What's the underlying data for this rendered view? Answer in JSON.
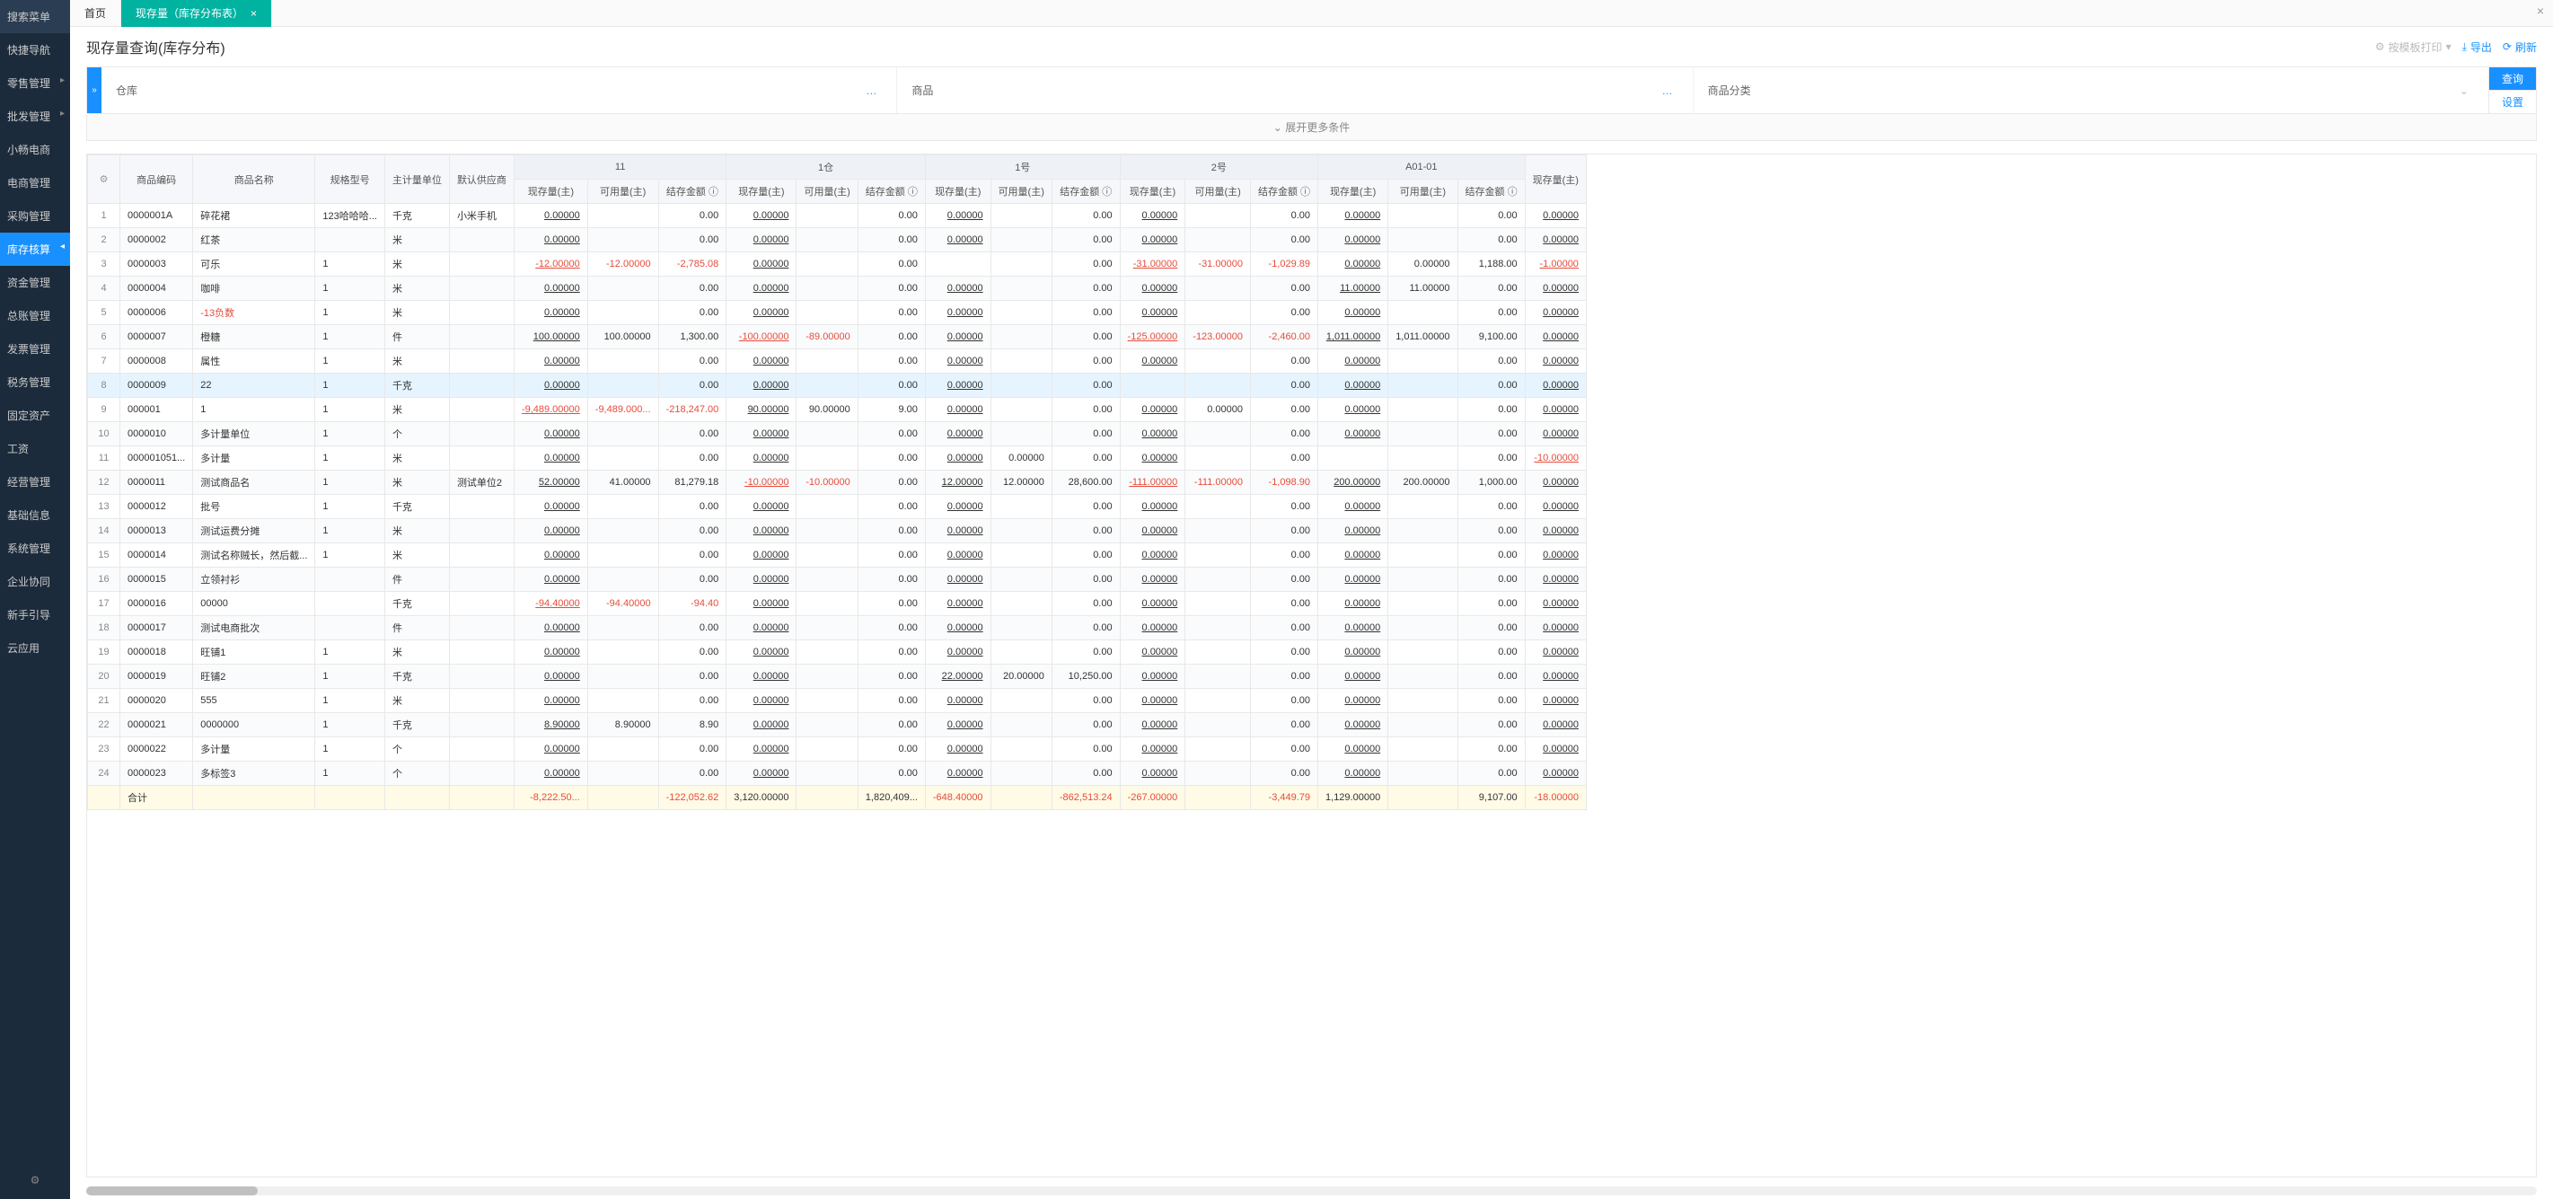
{
  "sidebar": {
    "items": [
      {
        "label": "搜索菜单",
        "sub": false
      },
      {
        "label": "快捷导航",
        "sub": false
      },
      {
        "label": "零售管理",
        "sub": true
      },
      {
        "label": "批发管理",
        "sub": true
      },
      {
        "label": "小畅电商",
        "sub": false
      },
      {
        "label": "电商管理",
        "sub": false
      },
      {
        "label": "采购管理",
        "sub": false
      },
      {
        "label": "库存核算",
        "sub": true,
        "active": true
      },
      {
        "label": "资金管理",
        "sub": false
      },
      {
        "label": "总账管理",
        "sub": false
      },
      {
        "label": "发票管理",
        "sub": false
      },
      {
        "label": "税务管理",
        "sub": false
      },
      {
        "label": "固定资产",
        "sub": false
      },
      {
        "label": "工资",
        "sub": false
      },
      {
        "label": "经营管理",
        "sub": false
      },
      {
        "label": "基础信息",
        "sub": false
      },
      {
        "label": "系统管理",
        "sub": false
      },
      {
        "label": "企业协同",
        "sub": false
      },
      {
        "label": "新手引导",
        "sub": false
      },
      {
        "label": "云应用",
        "sub": false
      }
    ],
    "footer_icon": "⚙"
  },
  "tabs": [
    {
      "label": "首页",
      "closable": false
    },
    {
      "label": "现存量（库存分布表）",
      "closable": true,
      "active": true
    }
  ],
  "page": {
    "title": "现存量查询(库存分布)",
    "actions": {
      "print": "按模板打印",
      "export": "导出",
      "refresh": "刷新"
    }
  },
  "filter": {
    "collapse_glyph": "»",
    "fields": [
      {
        "label": "仓库",
        "more": "…"
      },
      {
        "label": "商品",
        "more": "…"
      },
      {
        "label": "商品分类",
        "chevron": "⌄"
      }
    ],
    "query_btn": "查询",
    "settings_btn": "设置",
    "expand_label": "展开更多条件"
  },
  "table": {
    "fixed_cols": [
      "商品编码",
      "商品名称",
      "规格型号",
      "主计量单位",
      "默认供应商"
    ],
    "warehouses": [
      "11",
      "1仓",
      "1号",
      "2号",
      "A01-01",
      ""
    ],
    "wh_sub_cols": [
      "现存量(主)",
      "可用量(主)",
      "结存金额 ⓘ"
    ],
    "last_extra_col": "现存量(主)",
    "rows": [
      {
        "i": 1,
        "code": "0000001A",
        "name": "碎花裙",
        "spec": "123哈哈哈...",
        "unit": "千克",
        "vendor": "小米手机",
        "wh": [
          [
            "0.00000",
            "",
            "0.00"
          ],
          [
            "0.00000",
            "",
            "0.00"
          ],
          [
            "0.00000",
            "",
            "0.00"
          ],
          [
            "0.00000",
            "",
            "0.00"
          ],
          [
            "0.00000",
            "",
            "0.00"
          ]
        ],
        "ext": "0.00000"
      },
      {
        "i": 2,
        "code": "0000002",
        "name": "红茶",
        "spec": "",
        "unit": "米",
        "vendor": "",
        "wh": [
          [
            "0.00000",
            "",
            "0.00"
          ],
          [
            "0.00000",
            "",
            "0.00"
          ],
          [
            "0.00000",
            "",
            "0.00"
          ],
          [
            "0.00000",
            "",
            "0.00"
          ],
          [
            "0.00000",
            "",
            "0.00"
          ]
        ],
        "ext": "0.00000"
      },
      {
        "i": 3,
        "code": "0000003",
        "name": "可乐",
        "spec": "1",
        "unit": "米",
        "vendor": "",
        "wh": [
          [
            "-12.00000",
            "-12.00000",
            "-2,785.08"
          ],
          [
            "0.00000",
            "",
            "0.00"
          ],
          [
            "",
            "",
            "0.00"
          ],
          [
            "-31.00000",
            "-31.00000",
            "-1,029.89"
          ],
          [
            "0.00000",
            "0.00000",
            "1,188.00"
          ]
        ],
        "ext": "-1.00000"
      },
      {
        "i": 4,
        "code": "0000004",
        "name": "咖啡",
        "spec": "1",
        "unit": "米",
        "vendor": "",
        "wh": [
          [
            "0.00000",
            "",
            "0.00"
          ],
          [
            "0.00000",
            "",
            "0.00"
          ],
          [
            "0.00000",
            "",
            "0.00"
          ],
          [
            "0.00000",
            "",
            "0.00"
          ],
          [
            "11.00000",
            "11.00000",
            "0.00"
          ]
        ],
        "ext": "0.00000"
      },
      {
        "i": 5,
        "code": "0000006",
        "name": "-13负数",
        "neg_name": true,
        "spec": "1",
        "unit": "米",
        "vendor": "",
        "wh": [
          [
            "0.00000",
            "",
            "0.00"
          ],
          [
            "0.00000",
            "",
            "0.00"
          ],
          [
            "0.00000",
            "",
            "0.00"
          ],
          [
            "0.00000",
            "",
            "0.00"
          ],
          [
            "0.00000",
            "",
            "0.00"
          ]
        ],
        "ext": "0.00000"
      },
      {
        "i": 6,
        "code": "0000007",
        "name": "橙糖",
        "spec": "1",
        "unit": "件",
        "vendor": "",
        "wh": [
          [
            "100.00000",
            "100.00000",
            "1,300.00"
          ],
          [
            "-100.00000",
            "-89.00000",
            "0.00"
          ],
          [
            "0.00000",
            "",
            "0.00"
          ],
          [
            "-125.00000",
            "-123.00000",
            "-2,460.00"
          ],
          [
            "1,011.00000",
            "1,011.00000",
            "9,100.00"
          ]
        ],
        "ext": "0.00000"
      },
      {
        "i": 7,
        "code": "0000008",
        "name": "属性",
        "spec": "1",
        "unit": "米",
        "vendor": "",
        "wh": [
          [
            "0.00000",
            "",
            "0.00"
          ],
          [
            "0.00000",
            "",
            "0.00"
          ],
          [
            "0.00000",
            "",
            "0.00"
          ],
          [
            "0.00000",
            "",
            "0.00"
          ],
          [
            "0.00000",
            "",
            "0.00"
          ]
        ],
        "ext": "0.00000"
      },
      {
        "i": 8,
        "code": "0000009",
        "name": "22",
        "spec": "1",
        "unit": "千克",
        "vendor": "",
        "highlight": true,
        "wh": [
          [
            "0.00000",
            "",
            "0.00"
          ],
          [
            "0.00000",
            "",
            "0.00"
          ],
          [
            "0.00000",
            "",
            "0.00"
          ],
          [
            "",
            "",
            "0.00"
          ],
          [
            "0.00000",
            "",
            "0.00"
          ]
        ],
        "ext": "0.00000"
      },
      {
        "i": 9,
        "code": "000001",
        "name": "1",
        "spec": "1",
        "unit": "米",
        "vendor": "",
        "wh": [
          [
            "-9,489.00000",
            "-9,489.000...",
            "-218,247.00"
          ],
          [
            "90.00000",
            "90.00000",
            "9.00"
          ],
          [
            "0.00000",
            "",
            "0.00"
          ],
          [
            "0.00000",
            "0.00000",
            "0.00"
          ],
          [
            "0.00000",
            "",
            "0.00"
          ]
        ],
        "ext": "0.00000"
      },
      {
        "i": 10,
        "code": "0000010",
        "name": "多计量单位",
        "spec": "1",
        "unit": "个",
        "vendor": "",
        "wh": [
          [
            "0.00000",
            "",
            "0.00"
          ],
          [
            "0.00000",
            "",
            "0.00"
          ],
          [
            "0.00000",
            "",
            "0.00"
          ],
          [
            "0.00000",
            "",
            "0.00"
          ],
          [
            "0.00000",
            "",
            "0.00"
          ]
        ],
        "ext": "0.00000"
      },
      {
        "i": 11,
        "code": "000001051...",
        "name": "多计量",
        "spec": "1",
        "unit": "米",
        "vendor": "",
        "wh": [
          [
            "0.00000",
            "",
            "0.00"
          ],
          [
            "0.00000",
            "",
            "0.00"
          ],
          [
            "0.00000",
            "0.00000",
            "0.00"
          ],
          [
            "0.00000",
            "",
            "0.00"
          ],
          [
            "",
            "",
            "0.00"
          ]
        ],
        "ext": "-10.00000"
      },
      {
        "i": 12,
        "code": "0000011",
        "name": "测试商品名",
        "spec": "1",
        "unit": "米",
        "vendor": "测试单位2",
        "wh": [
          [
            "52.00000",
            "41.00000",
            "81,279.18"
          ],
          [
            "-10.00000",
            "-10.00000",
            "0.00"
          ],
          [
            "12.00000",
            "12.00000",
            "28,600.00"
          ],
          [
            "-111.00000",
            "-111.00000",
            "-1,098.90"
          ],
          [
            "200.00000",
            "200.00000",
            "1,000.00"
          ]
        ],
        "ext": "0.00000"
      },
      {
        "i": 13,
        "code": "0000012",
        "name": "批号",
        "spec": "1",
        "unit": "千克",
        "vendor": "",
        "wh": [
          [
            "0.00000",
            "",
            "0.00"
          ],
          [
            "0.00000",
            "",
            "0.00"
          ],
          [
            "0.00000",
            "",
            "0.00"
          ],
          [
            "0.00000",
            "",
            "0.00"
          ],
          [
            "0.00000",
            "",
            "0.00"
          ]
        ],
        "ext": "0.00000"
      },
      {
        "i": 14,
        "code": "0000013",
        "name": "测试运费分摊",
        "spec": "1",
        "unit": "米",
        "vendor": "",
        "wh": [
          [
            "0.00000",
            "",
            "0.00"
          ],
          [
            "0.00000",
            "",
            "0.00"
          ],
          [
            "0.00000",
            "",
            "0.00"
          ],
          [
            "0.00000",
            "",
            "0.00"
          ],
          [
            "0.00000",
            "",
            "0.00"
          ]
        ],
        "ext": "0.00000"
      },
      {
        "i": 15,
        "code": "0000014",
        "name": "测试名称贼长，然后截...",
        "spec": "1",
        "unit": "米",
        "vendor": "",
        "wh": [
          [
            "0.00000",
            "",
            "0.00"
          ],
          [
            "0.00000",
            "",
            "0.00"
          ],
          [
            "0.00000",
            "",
            "0.00"
          ],
          [
            "0.00000",
            "",
            "0.00"
          ],
          [
            "0.00000",
            "",
            "0.00"
          ]
        ],
        "ext": "0.00000"
      },
      {
        "i": 16,
        "code": "0000015",
        "name": "立领衬衫",
        "spec": "",
        "unit": "件",
        "vendor": "",
        "wh": [
          [
            "0.00000",
            "",
            "0.00"
          ],
          [
            "0.00000",
            "",
            "0.00"
          ],
          [
            "0.00000",
            "",
            "0.00"
          ],
          [
            "0.00000",
            "",
            "0.00"
          ],
          [
            "0.00000",
            "",
            "0.00"
          ]
        ],
        "ext": "0.00000"
      },
      {
        "i": 17,
        "code": "0000016",
        "name": "00000",
        "spec": "",
        "unit": "千克",
        "vendor": "",
        "wh": [
          [
            "-94.40000",
            "-94.40000",
            "-94.40"
          ],
          [
            "0.00000",
            "",
            "0.00"
          ],
          [
            "0.00000",
            "",
            "0.00"
          ],
          [
            "0.00000",
            "",
            "0.00"
          ],
          [
            "0.00000",
            "",
            "0.00"
          ]
        ],
        "ext": "0.00000"
      },
      {
        "i": 18,
        "code": "0000017",
        "name": "测试电商批次",
        "spec": "",
        "unit": "件",
        "vendor": "",
        "wh": [
          [
            "0.00000",
            "",
            "0.00"
          ],
          [
            "0.00000",
            "",
            "0.00"
          ],
          [
            "0.00000",
            "",
            "0.00"
          ],
          [
            "0.00000",
            "",
            "0.00"
          ],
          [
            "0.00000",
            "",
            "0.00"
          ]
        ],
        "ext": "0.00000"
      },
      {
        "i": 19,
        "code": "0000018",
        "name": "旺铺1",
        "spec": "1",
        "unit": "米",
        "vendor": "",
        "wh": [
          [
            "0.00000",
            "",
            "0.00"
          ],
          [
            "0.00000",
            "",
            "0.00"
          ],
          [
            "0.00000",
            "",
            "0.00"
          ],
          [
            "0.00000",
            "",
            "0.00"
          ],
          [
            "0.00000",
            "",
            "0.00"
          ]
        ],
        "ext": "0.00000"
      },
      {
        "i": 20,
        "code": "0000019",
        "name": "旺铺2",
        "spec": "1",
        "unit": "千克",
        "vendor": "",
        "wh": [
          [
            "0.00000",
            "",
            "0.00"
          ],
          [
            "0.00000",
            "",
            "0.00"
          ],
          [
            "22.00000",
            "20.00000",
            "10,250.00"
          ],
          [
            "0.00000",
            "",
            "0.00"
          ],
          [
            "0.00000",
            "",
            "0.00"
          ]
        ],
        "ext": "0.00000"
      },
      {
        "i": 21,
        "code": "0000020",
        "name": "555",
        "spec": "1",
        "unit": "米",
        "vendor": "",
        "wh": [
          [
            "0.00000",
            "",
            "0.00"
          ],
          [
            "0.00000",
            "",
            "0.00"
          ],
          [
            "0.00000",
            "",
            "0.00"
          ],
          [
            "0.00000",
            "",
            "0.00"
          ],
          [
            "0.00000",
            "",
            "0.00"
          ]
        ],
        "ext": "0.00000"
      },
      {
        "i": 22,
        "code": "0000021",
        "name": "0000000",
        "spec": "1",
        "unit": "千克",
        "vendor": "",
        "wh": [
          [
            "8.90000",
            "8.90000",
            "8.90"
          ],
          [
            "0.00000",
            "",
            "0.00"
          ],
          [
            "0.00000",
            "",
            "0.00"
          ],
          [
            "0.00000",
            "",
            "0.00"
          ],
          [
            "0.00000",
            "",
            "0.00"
          ]
        ],
        "ext": "0.00000"
      },
      {
        "i": 23,
        "code": "0000022",
        "name": "多计量",
        "spec": "1",
        "unit": "个",
        "vendor": "",
        "wh": [
          [
            "0.00000",
            "",
            "0.00"
          ],
          [
            "0.00000",
            "",
            "0.00"
          ],
          [
            "0.00000",
            "",
            "0.00"
          ],
          [
            "0.00000",
            "",
            "0.00"
          ],
          [
            "0.00000",
            "",
            "0.00"
          ]
        ],
        "ext": "0.00000"
      },
      {
        "i": 24,
        "code": "0000023",
        "name": "多标签3",
        "spec": "1",
        "unit": "个",
        "vendor": "",
        "wh": [
          [
            "0.00000",
            "",
            "0.00"
          ],
          [
            "0.00000",
            "",
            "0.00"
          ],
          [
            "0.00000",
            "",
            "0.00"
          ],
          [
            "0.00000",
            "",
            "0.00"
          ],
          [
            "0.00000",
            "",
            "0.00"
          ]
        ],
        "ext": "0.00000"
      }
    ],
    "totals": {
      "label": "合计",
      "wh": [
        [
          "-8,222.50...",
          "",
          "-122,052.62"
        ],
        [
          "3,120.00000",
          "",
          "1,820,409..."
        ],
        [
          "-648.40000",
          "",
          "-862,513.24"
        ],
        [
          "-267.00000",
          "",
          "-3,449.79"
        ],
        [
          "1,129.00000",
          "",
          "9,107.00"
        ]
      ],
      "ext": "-18.00000"
    }
  }
}
